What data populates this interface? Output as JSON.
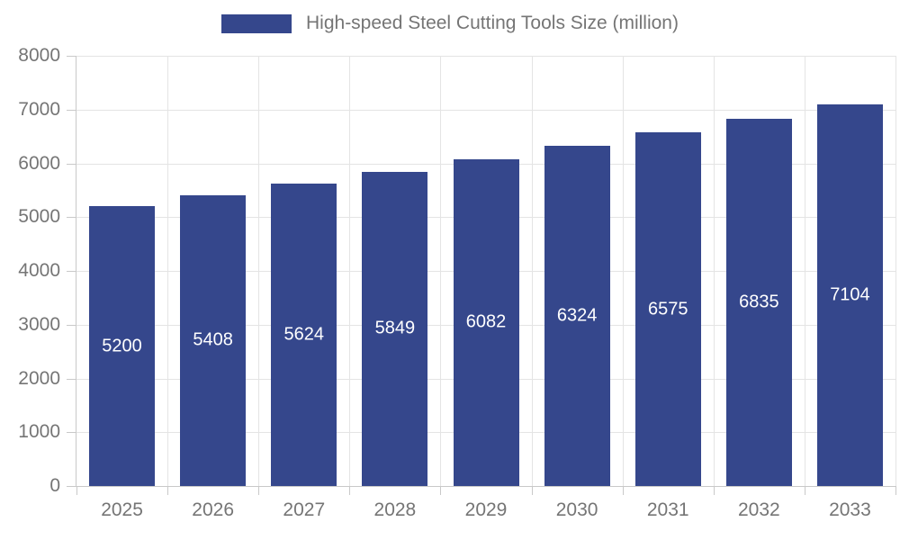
{
  "chart_data": {
    "type": "bar",
    "title": "High-speed Steel Cutting Tools Size (million)",
    "categories": [
      "2025",
      "2026",
      "2027",
      "2028",
      "2029",
      "2030",
      "2031",
      "2032",
      "2033"
    ],
    "values": [
      5200,
      5408,
      5624,
      5849,
      6082,
      6324,
      6575,
      6835,
      7104
    ],
    "xlabel": "",
    "ylabel": "",
    "ylim": [
      0,
      8000
    ],
    "ytick_step": 1000,
    "grid": "on",
    "legend_position": "top-center",
    "colors": {
      "bar": "#35478C",
      "value_label": "#ffffff",
      "axis_text": "#757575",
      "grid_line": "#e4e4e4",
      "axis_line": "#c9c9c9"
    }
  }
}
